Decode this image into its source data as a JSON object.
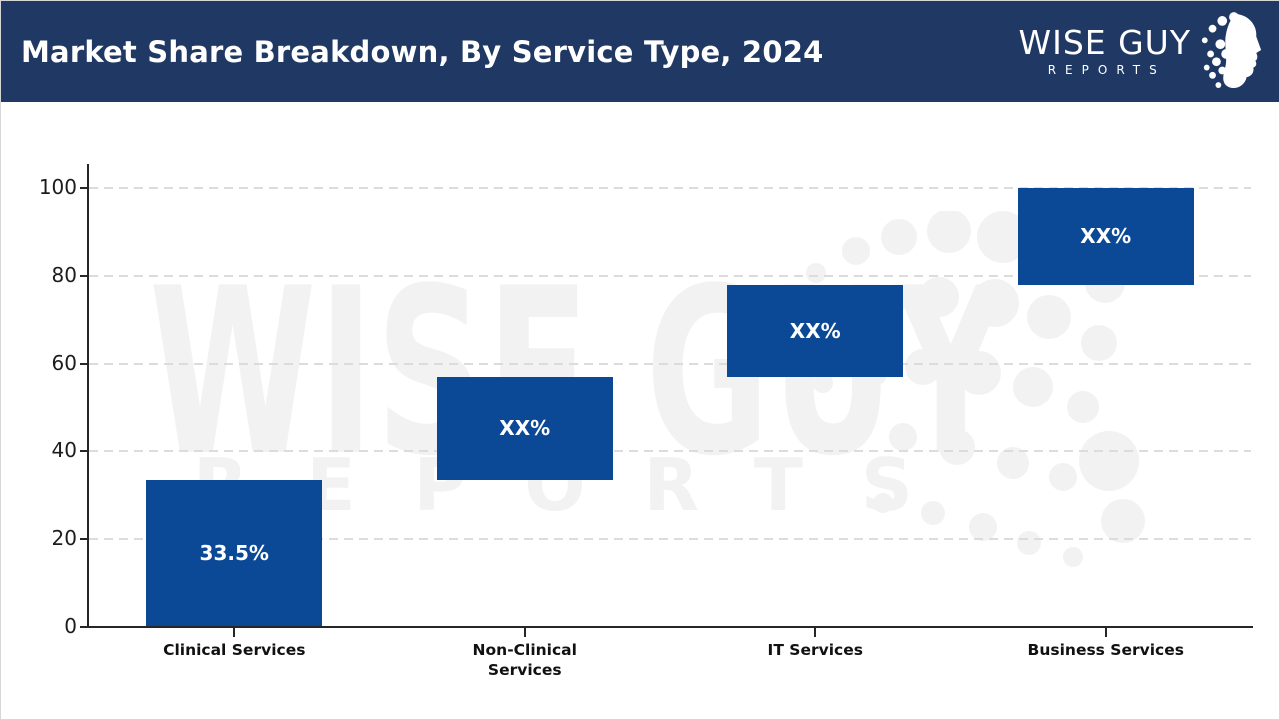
{
  "header": {
    "title": "Market Share Breakdown, By Service Type, 2024",
    "logo": {
      "line1": "WISE GUY",
      "line2": "REPORTS"
    }
  },
  "watermark": {
    "line1": "WISE GUY",
    "line2": "REPORTS"
  },
  "colors": {
    "header_bg": "#203864",
    "bar": "#0b4896",
    "grid": "#dcdcdc",
    "axis": "#262626",
    "watermark": "#f2f2f2"
  },
  "chart_data": {
    "type": "bar",
    "subtype": "waterfall",
    "title": "Market Share Breakdown, By Service Type, 2024",
    "xlabel": "",
    "ylabel": "",
    "ylim": [
      0,
      100
    ],
    "yticks": [
      0,
      20,
      40,
      60,
      80,
      100
    ],
    "grid": "dashed-horizontal",
    "legend": "none",
    "categories": [
      "Clinical Services",
      "Non-Clinical\nServices",
      "IT Services",
      "Business Services"
    ],
    "segments": [
      {
        "category": "Clinical Services",
        "start": 0,
        "end": 33.5,
        "label": "33.5%"
      },
      {
        "category": "Non-Clinical Services",
        "start": 33.5,
        "end": 57,
        "label": "XX%"
      },
      {
        "category": "IT Services",
        "start": 57,
        "end": 78,
        "label": "XX%"
      },
      {
        "category": "Business Services",
        "start": 78,
        "end": 100,
        "label": "XX%"
      }
    ],
    "bar_color": "#0b4896",
    "bar_label_color": "#ffffff"
  }
}
